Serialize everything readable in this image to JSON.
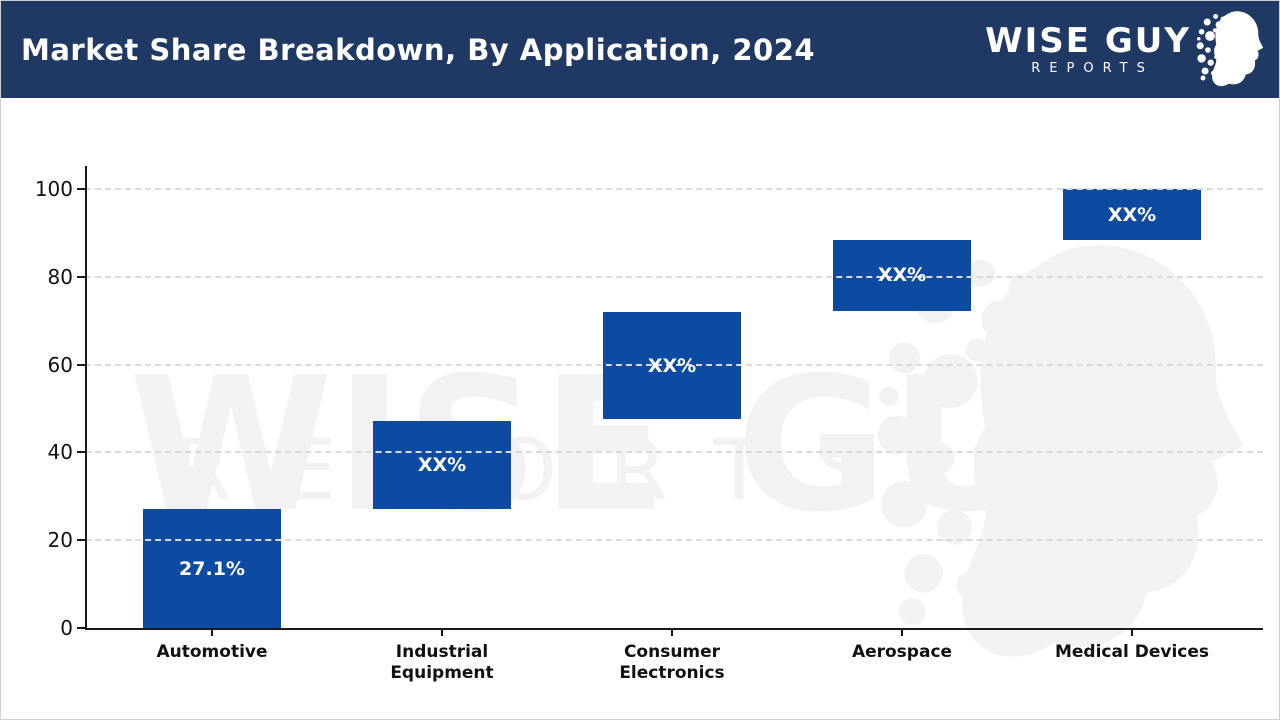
{
  "header": {
    "title": "Market Share Breakdown, By Application, 2024",
    "logo_primary": "WISE GUY",
    "logo_secondary": "REPORTS"
  },
  "watermark": {
    "primary": "WISE GUY",
    "secondary": "REPORTS"
  },
  "colors": {
    "header_bg": "#203864",
    "bar": "#0d4aa1",
    "gridline": "#d9d9d9",
    "axis": "#1a1a1a",
    "watermark": "#f2f2f4",
    "bar_label": "#ffffff"
  },
  "chart_data": {
    "type": "bar",
    "variant": "waterfall",
    "title": "Market Share Breakdown, By Application, 2024",
    "categories": [
      "Automotive",
      "Industrial Equipment",
      "Consumer Electronics",
      "Aerospace",
      "Medical Devices"
    ],
    "category_lines": [
      [
        "Automotive"
      ],
      [
        "Industrial",
        "Equipment"
      ],
      [
        "Consumer",
        "Electronics"
      ],
      [
        "Aerospace"
      ],
      [
        "Medical Devices"
      ]
    ],
    "segments": [
      {
        "category": "Automotive",
        "start": 0,
        "end": 27.1,
        "label": "27.1%"
      },
      {
        "category": "Industrial Equipment",
        "start": 27.1,
        "end": 47.2,
        "label": "XX%"
      },
      {
        "category": "Consumer Electronics",
        "start": 47.5,
        "end": 71.9,
        "label": "XX%"
      },
      {
        "category": "Aerospace",
        "start": 72.3,
        "end": 88.3,
        "label": "XX%"
      },
      {
        "category": "Medical Devices",
        "start": 88.3,
        "end": 100,
        "label": "XX%"
      }
    ],
    "xlabel": "",
    "ylabel": "",
    "ylim": [
      0,
      100
    ],
    "yticks": [
      0,
      20,
      40,
      60,
      80,
      100
    ],
    "grid": "horizontal-dashed",
    "legend": "none"
  }
}
